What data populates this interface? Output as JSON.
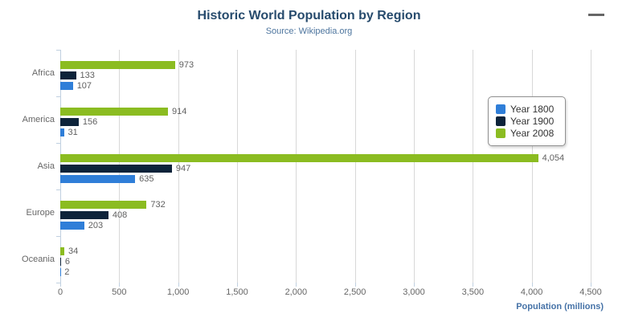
{
  "title": "Historic World Population by Region",
  "subtitle": "Source: Wikipedia.org",
  "axis_title": "Population (millions)",
  "menu": {
    "icon": "hamburger-icon"
  },
  "colors": {
    "title": "#274b6d",
    "subtitle": "#4d759e",
    "axis_title": "#4572a7",
    "axis_labels": "#666666",
    "data_labels": "#606060",
    "gridline": "#d8d8d8",
    "axis_line": "#c0d0e0",
    "legend_border": "#909090"
  },
  "chart_data": {
    "type": "bar",
    "orientation": "horizontal",
    "title": "Historic World Population by Region",
    "subtitle": "Source: Wikipedia.org",
    "categories": [
      "Africa",
      "America",
      "Asia",
      "Europe",
      "Oceania"
    ],
    "series": [
      {
        "name": "Year 1800",
        "color": "#2f7ed8",
        "values": [
          107,
          31,
          635,
          203,
          2
        ]
      },
      {
        "name": "Year 1900",
        "color": "#0d233a",
        "values": [
          133,
          156,
          947,
          408,
          6
        ]
      },
      {
        "name": "Year 2008",
        "color": "#8bbc21",
        "values": [
          973,
          914,
          4054,
          732,
          34
        ]
      }
    ],
    "bar_order_top_to_bottom": [
      "Year 2008",
      "Year 1900",
      "Year 1800"
    ],
    "data_labels": true,
    "xlabel": "Population (millions)",
    "ylabel": "",
    "xlim": [
      0,
      4500
    ],
    "ticks": [
      0,
      500,
      1000,
      1500,
      2000,
      2500,
      3000,
      3500,
      4000,
      4500
    ],
    "tick_labels": [
      "0",
      "500",
      "1,000",
      "1,500",
      "2,000",
      "2,500",
      "3,000",
      "3,500",
      "4,000",
      "4,500"
    ],
    "grid": true,
    "legend_position": "right",
    "legend_entries": [
      "Year 1800",
      "Year 1900",
      "Year 2008"
    ]
  }
}
